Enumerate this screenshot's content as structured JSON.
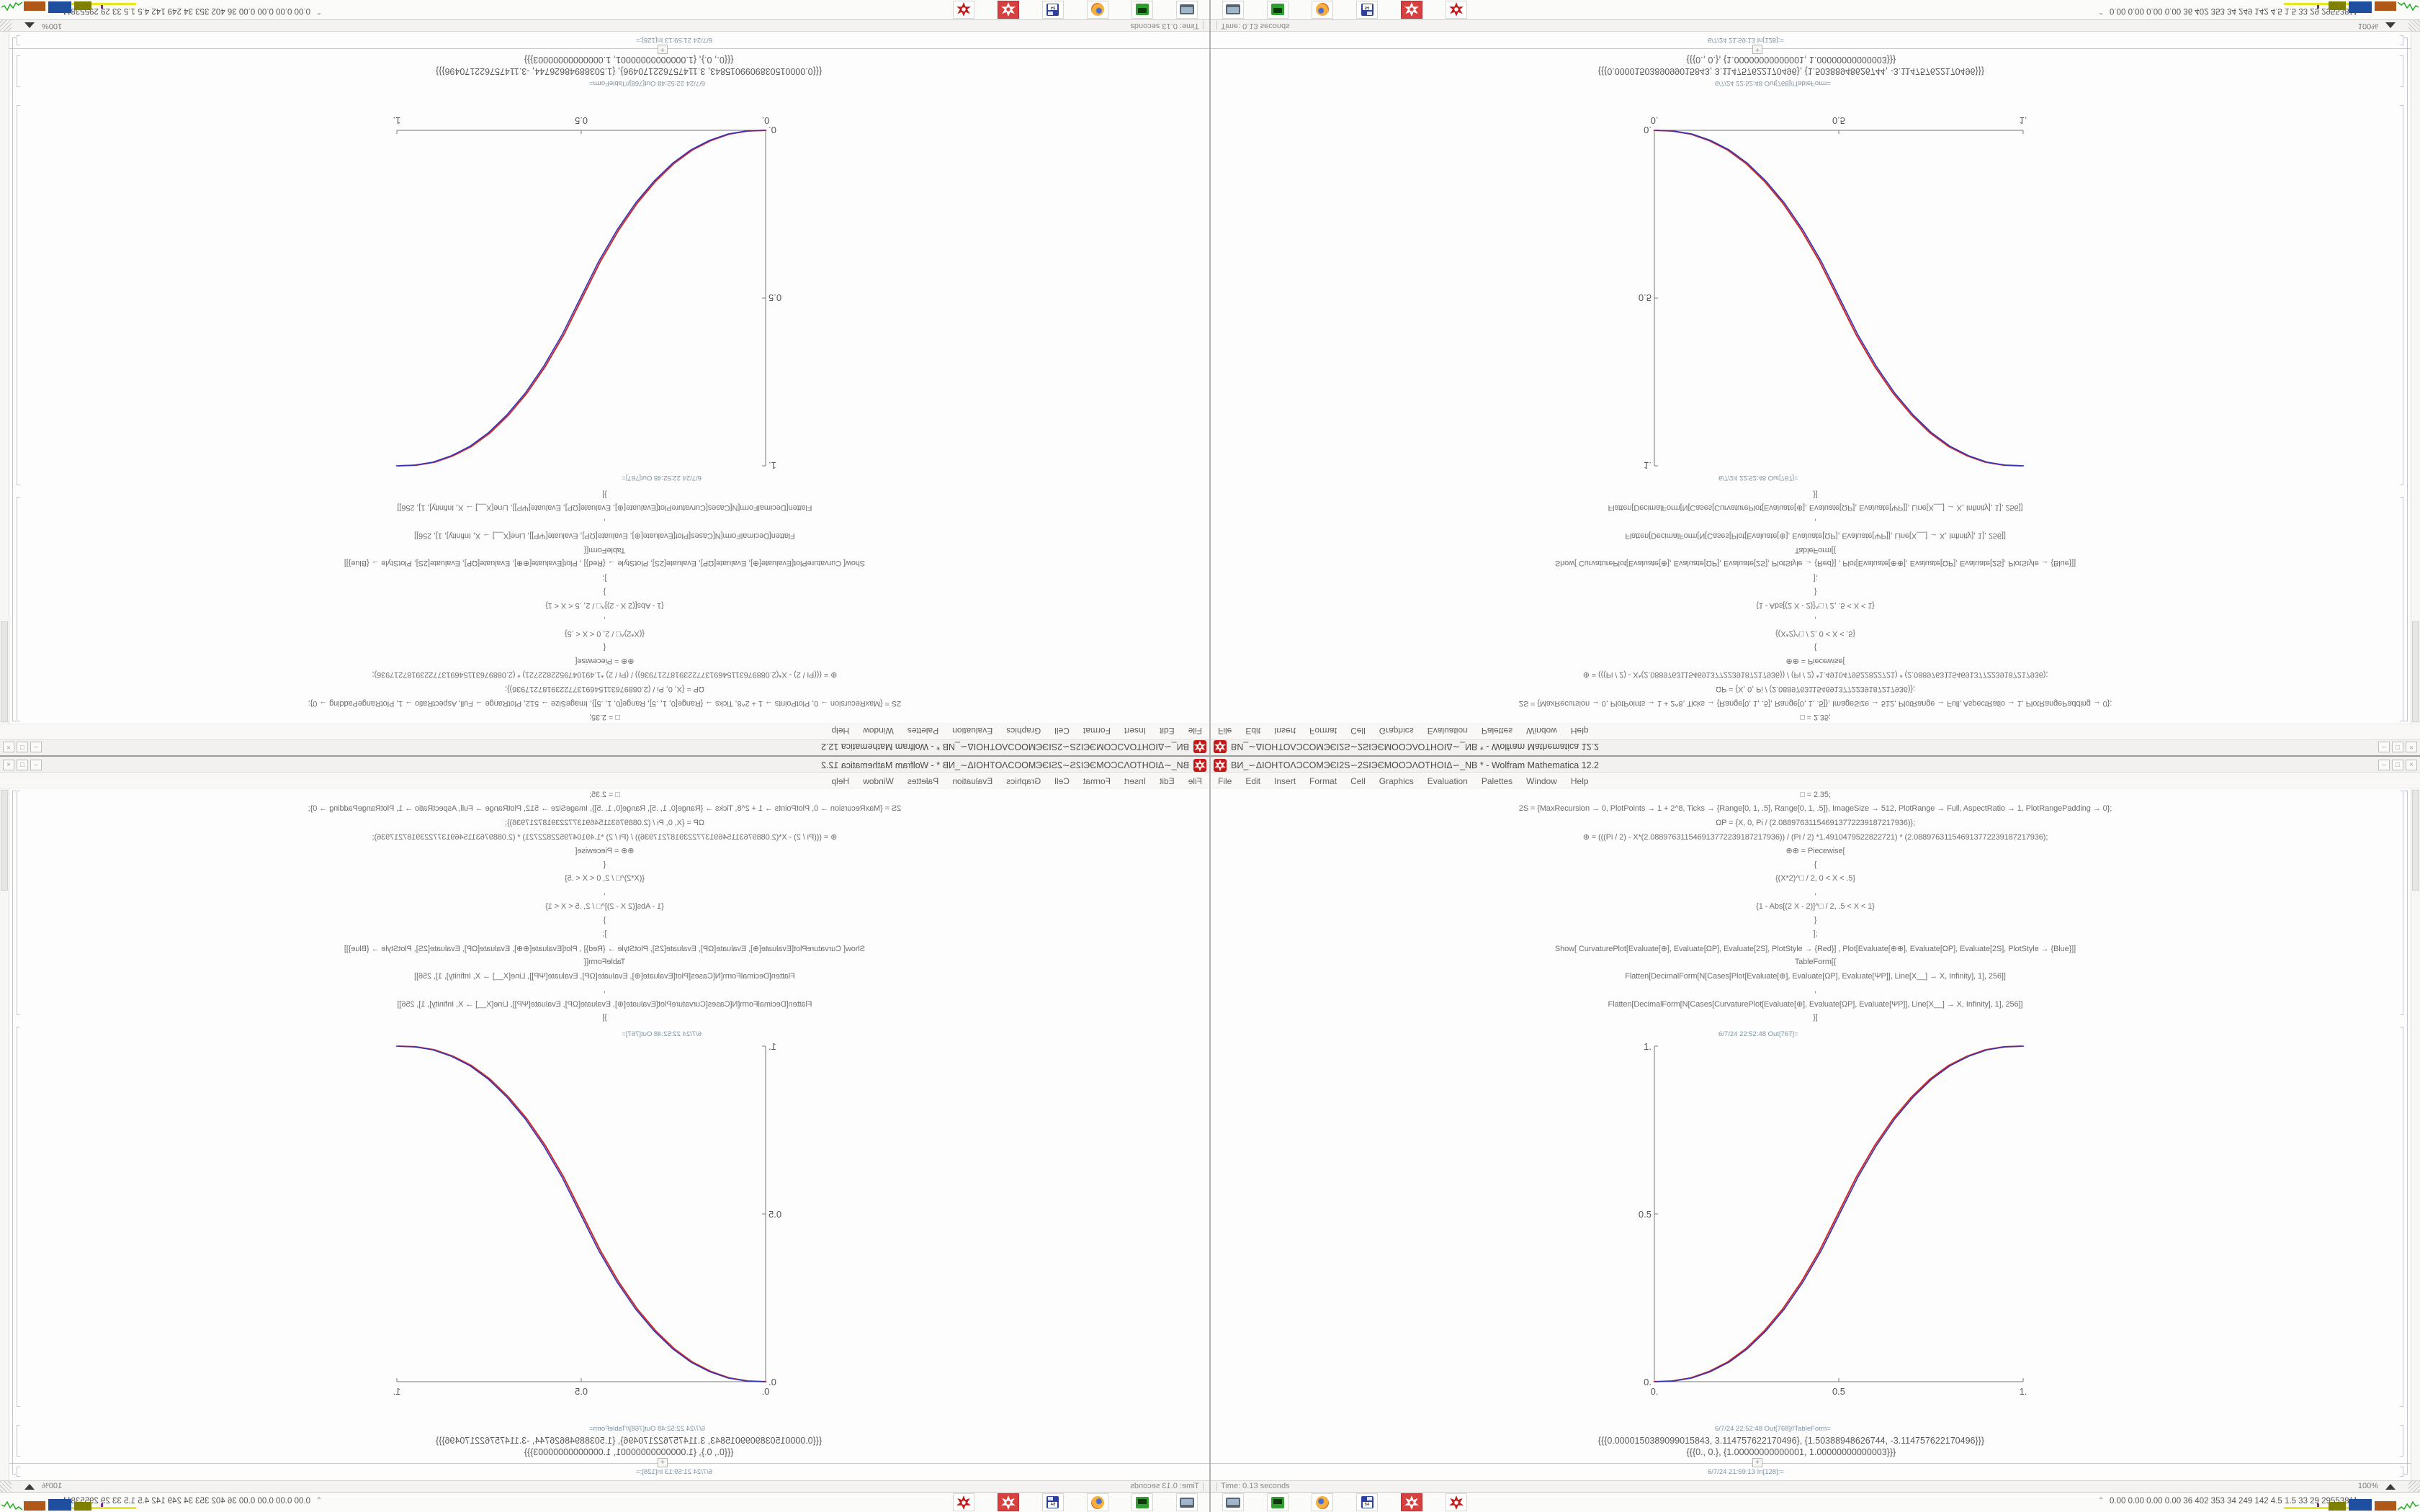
{
  "window": {
    "title": "ВИ_∽ΔΙΟΗΤΟΛϽCΟΜЭЄΙ2S∽2SΙЭЄΜΟΟϽΛΟΤΗΟΙΔ∽_NB * - Wolfram Mathematica 12.2",
    "menu": [
      "File",
      "Edit",
      "Insert",
      "Format",
      "Cell",
      "Graphics",
      "Evaluation",
      "Palettes",
      "Window",
      "Help"
    ],
    "controls": {
      "minimize": "–",
      "maximize": "□",
      "close": "×"
    }
  },
  "notebook": {
    "code_lines": [
      "□ = 2.35;",
      "2S = {MaxRecursion → 0, PlotPoints → 1 + 2^8, Ticks → {Range[0, 1, .5], Range[0, 1, .5]}, ImageSize → 512, PlotRange → Full, AspectRatio → 1, PlotRangePadding → 0};",
      "ΩΡ = {X, 0, Pi / (2.088976311546913772239187217936)};",
      "⊕ = (((Pi / 2) - X*(2.088976311546913772239187217936)) / (Pi / 2) *1.4910479522822721) * (2.088976311546913772239187217936);",
      "⊕⊕ = Piecewise[",
      "{",
      "{(X*2)^□ / 2, 0 < X < .5}",
      ",",
      "{1 - Abs[(2 X - 2)]^□ / 2, .5 < X < 1}",
      "}",
      "];",
      "Show[  CurvaturePlot[Evaluate[⊕], Evaluate[ΩΡ], Evaluate[2S], PlotStyle → {Red}]  ,  Plot[Evaluate[⊕⊕], Evaluate[ΩΡ], Evaluate[2S], PlotStyle → {Blue}]]",
      "TableForm[{",
      "Flatten[DecimalForm[N[Cases[Plot[Evaluate[⊕], Evaluate[ΩΡ], Evaluate[ΨΡ]], Line[X__] → X, Infinity], 1], 256]]",
      ",",
      "Flatten[DecimalForm[N[Cases[CurvaturePlot[Evaluate[⊕], Evaluate[ΩΡ], Evaluate[ΨΡ]], Line[X__] → X, Infinity], 1], 256]]",
      "}]"
    ],
    "out1_label": "6/7/24 22:52:48 Out[767]=",
    "out2_label": "6/7/24 22:52:48 Out[768]//TableForm=",
    "out2_line1": "{{{0.0000150389099015843, 3.114757622170496}, {1.50388948626744, -3.114757622170496}}}",
    "out2_line2": "{{{0., 0.}, {1.00000000000001, 1.00000000000003}}}",
    "next_in_label": "6/7/24 21:59:13 In[128]:=",
    "plus_glyph": "+"
  },
  "statusbar": {
    "time": "Time: 0.13 seconds",
    "zoom": "100%"
  },
  "taskbar": {
    "icons": [
      "display-capture",
      "package-manager",
      "firefox",
      "floppy-64",
      "mathematica-active",
      "mathematica"
    ],
    "floppy_label": "64",
    "monitor_collapse": "⌃",
    "monitor_text": "0.00 0.00 0.00 0.00   36   402   353   34   249   142   4.5   1.5   33   29   29553811"
  },
  "chart_data": {
    "type": "line",
    "title": "",
    "xlabel": "",
    "ylabel": "",
    "xlim": [
      0,
      1
    ],
    "ylim": [
      0,
      1
    ],
    "grid": false,
    "legend": "none",
    "xticks": [
      "0.",
      "0.5",
      "1."
    ],
    "yticks": [
      "0.",
      "0.5",
      "1."
    ],
    "x": [
      0,
      0.05,
      0.1,
      0.15,
      0.2,
      0.25,
      0.3,
      0.35,
      0.4,
      0.45,
      0.5,
      0.55,
      0.6,
      0.65,
      0.7,
      0.75,
      0.8,
      0.85,
      0.9,
      0.95,
      1
    ],
    "series": [
      {
        "name": "CurvaturePlot ⊕ (Red)",
        "color": "#cc2a2a",
        "values": [
          0,
          0.002,
          0.011,
          0.03,
          0.058,
          0.098,
          0.151,
          0.216,
          0.296,
          0.39,
          0.5,
          0.61,
          0.704,
          0.784,
          0.849,
          0.902,
          0.942,
          0.97,
          0.989,
          0.998,
          1
        ]
      },
      {
        "name": "Plot ⊕⊕ (Blue)",
        "color": "#3333bb",
        "values": [
          0,
          0.002,
          0.011,
          0.03,
          0.058,
          0.098,
          0.151,
          0.216,
          0.296,
          0.39,
          0.5,
          0.61,
          0.704,
          0.784,
          0.849,
          0.902,
          0.942,
          0.97,
          0.989,
          0.998,
          1
        ]
      }
    ]
  }
}
